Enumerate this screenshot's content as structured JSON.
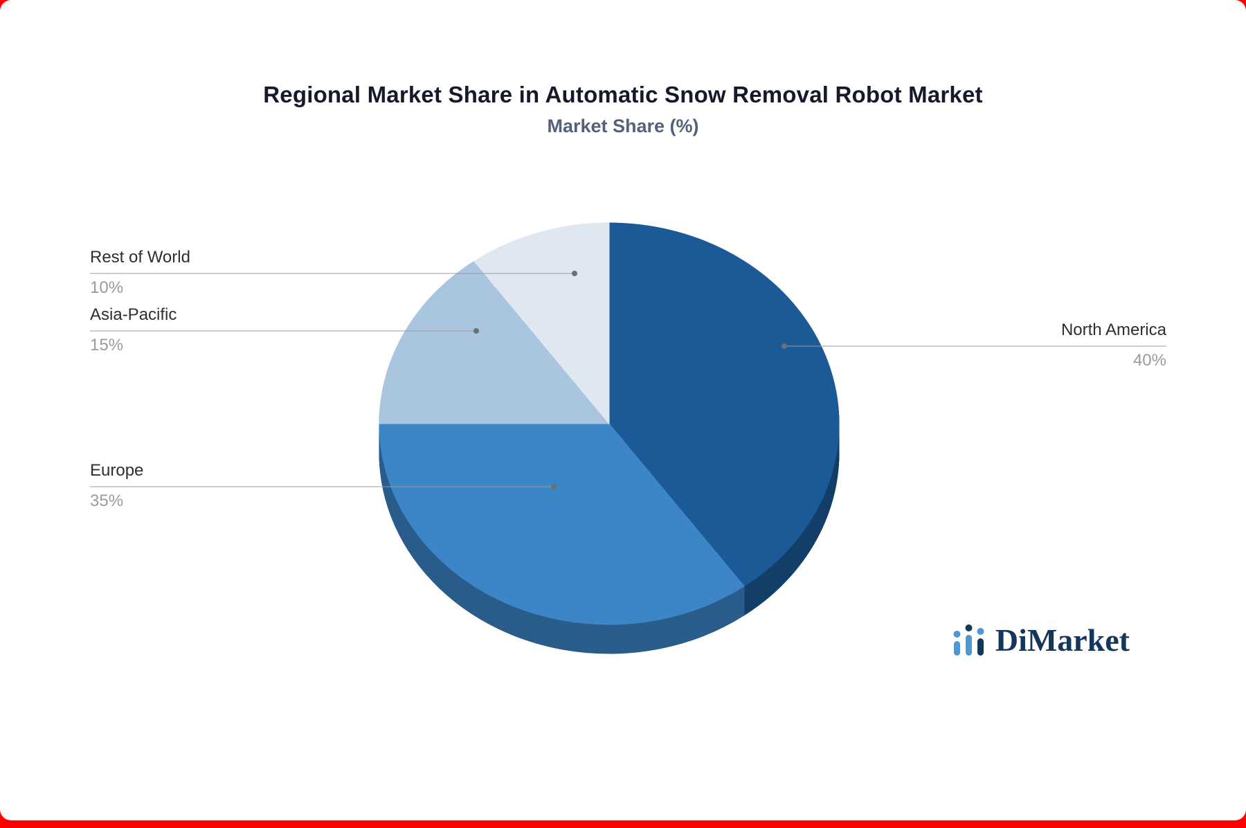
{
  "page": {
    "frame_color": "#ff0000",
    "background_color": "#ffffff"
  },
  "chart_data": {
    "type": "pie",
    "title": "Regional Market Share in Automatic Snow Removal Robot Market",
    "subtitle": "Market Share (%)",
    "unit": "%",
    "effect": "3d",
    "start_angle_deg": -90,
    "direction": "clockwise",
    "legend_position": "callout-labels",
    "slices": [
      {
        "label": "North America",
        "value": 40,
        "value_label": "40%",
        "color": "#1b5a96"
      },
      {
        "label": "Europe",
        "value": 35,
        "value_label": "35%",
        "color": "#3c85c7"
      },
      {
        "label": "Asia-Pacific",
        "value": 15,
        "value_label": "15%",
        "color": "#a9c5df"
      },
      {
        "label": "Rest of World",
        "value": 10,
        "value_label": "10%",
        "color": "#dfe7f1"
      }
    ],
    "leader_line_color": "#9b9b9b",
    "leader_dot_color": "#6f6f6f"
  },
  "logo": {
    "text": "DiMarket",
    "navy": "#14365c",
    "light_blue": "#4e97d1"
  }
}
